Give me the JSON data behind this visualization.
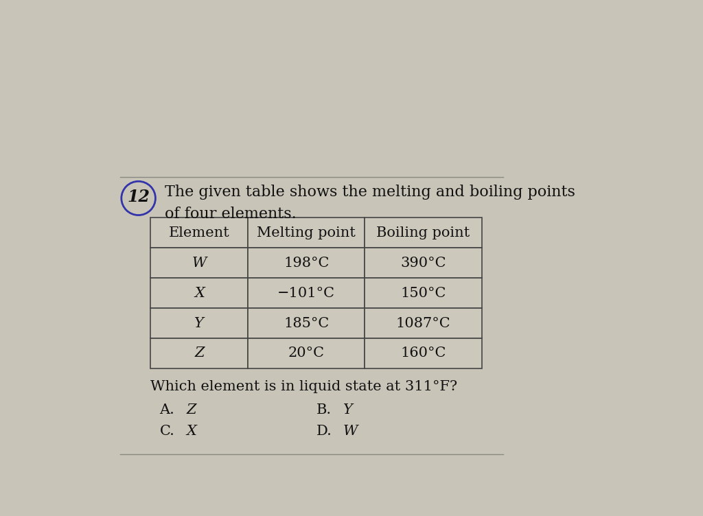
{
  "title_text": "The given table shows the melting and boiling points\nof four elements.",
  "question_number": "12",
  "headers": [
    "Element",
    "Melting point",
    "Boiling point"
  ],
  "rows": [
    [
      "W",
      "198°C",
      "390°C"
    ],
    [
      "X",
      "−101°C",
      "150°C"
    ],
    [
      "Y",
      "185°C",
      "1087°C"
    ],
    [
      "Z",
      "20°C",
      "160°C"
    ]
  ],
  "question": "Which element is in liquid state at 311°F?",
  "options_left_label": [
    "A.",
    "C."
  ],
  "options_left_val": [
    "Z",
    "X"
  ],
  "options_right_label": [
    "B.",
    "D."
  ],
  "options_right_val": [
    "Y",
    "W"
  ],
  "bg_color": "#c8c4b8",
  "page_color": "#d4d0c4",
  "table_bg": "#ccc8bc",
  "text_color": "#111111",
  "line_color": "#444444",
  "title_fontsize": 16,
  "table_header_fontsize": 15,
  "table_data_fontsize": 15,
  "question_fontsize": 15,
  "option_fontsize": 15,
  "circle_color": "#3333aa"
}
